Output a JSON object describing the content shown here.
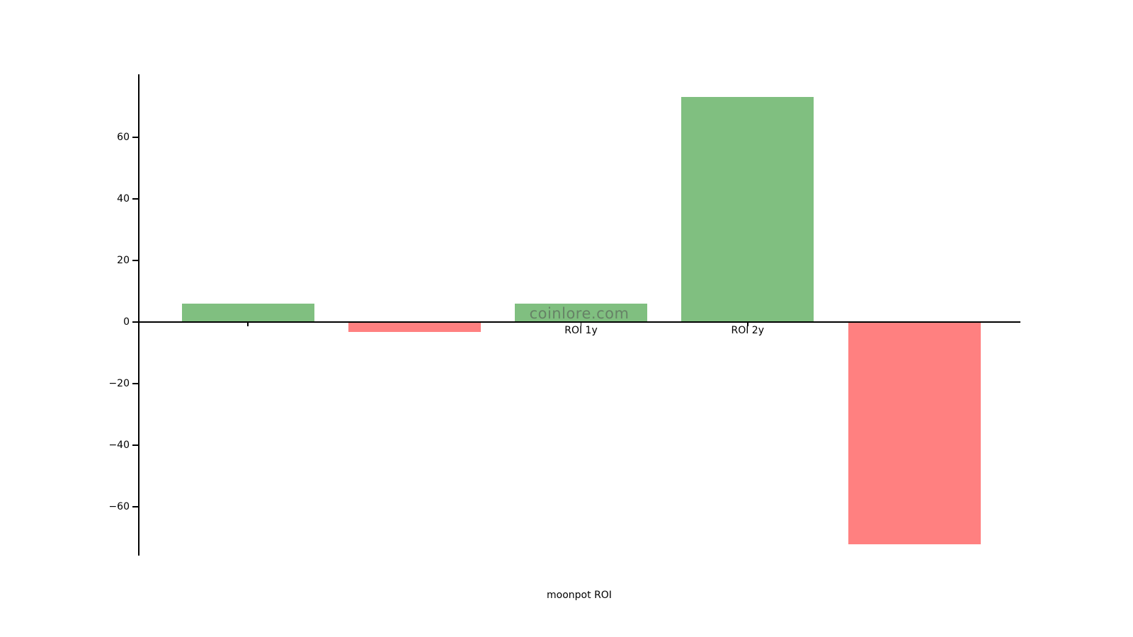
{
  "watermark": "coinlore.com",
  "chart_data": {
    "type": "bar",
    "title": "",
    "xlabel": "moonpot ROI",
    "ylabel": "",
    "categories": [
      "",
      "",
      "ROI 1y",
      "ROI 2y",
      ""
    ],
    "values": [
      6,
      -3,
      6,
      73,
      -72
    ],
    "series_note": "single series; bar color depends on sign of value",
    "positive_color": "#80bf80",
    "negative_color": "#ff8080",
    "axis_color": "#000000",
    "watermark_color": "#505050",
    "background_color": "#ffffff",
    "yticks": [
      60,
      40,
      20,
      0,
      -20,
      -40,
      -60
    ],
    "ytick_labels": [
      "60",
      "40",
      "20",
      "0",
      "−20",
      "−40",
      "−60"
    ],
    "ylim": [
      -76,
      80
    ],
    "grid": false,
    "legend": false
  }
}
